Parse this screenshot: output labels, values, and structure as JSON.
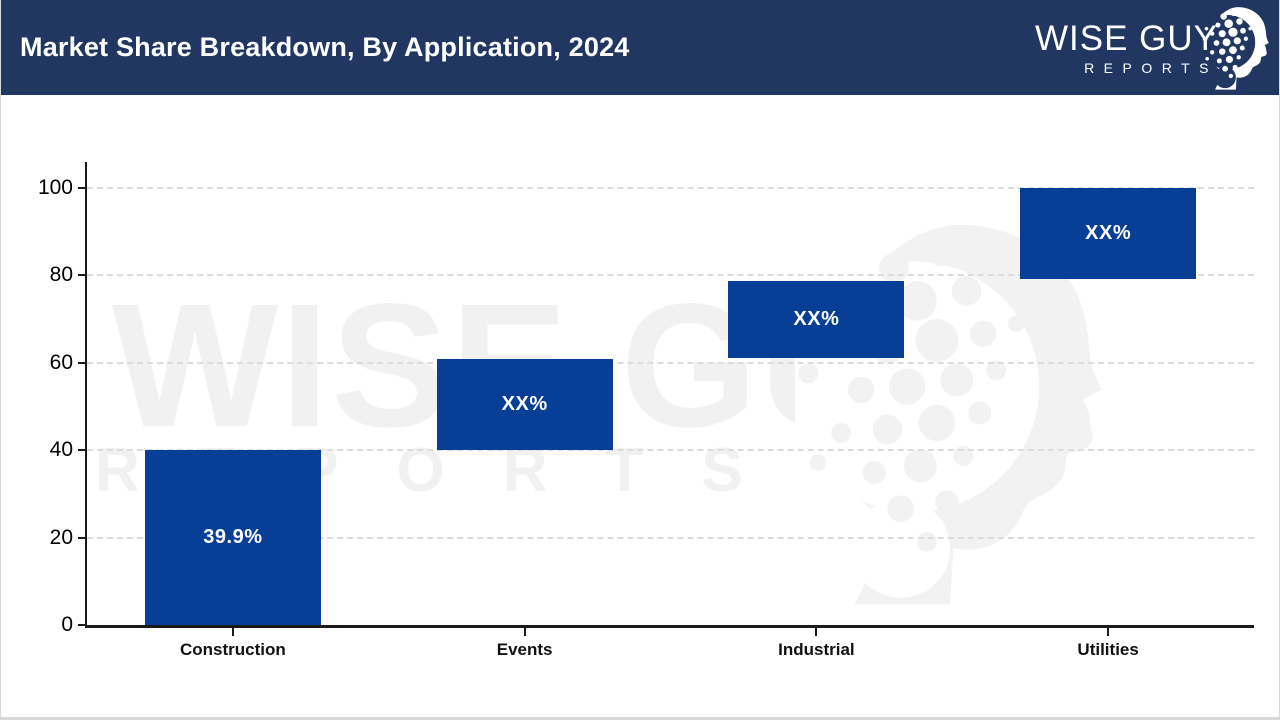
{
  "header": {
    "title": "Market Share Breakdown, By Application, 2024",
    "logo": {
      "line1": "WISE GUY",
      "line2": "REPORTS"
    }
  },
  "watermark": {
    "line1": "WISE GUY",
    "line2": "REPORTS"
  },
  "theme": {
    "header_bg": "#213660",
    "bar_color": "#083f96",
    "grid_color": "#dcdcdc",
    "axis_color": "#1a1a1a"
  },
  "chart_data": {
    "type": "bar",
    "subtype": "waterfall",
    "title": "Market Share Breakdown, By Application, 2024",
    "categories": [
      "Construction",
      "Events",
      "Industrial",
      "Utilities"
    ],
    "segments": [
      {
        "category": "Construction",
        "start": 0,
        "end": 39.9,
        "label": "39.9%"
      },
      {
        "category": "Events",
        "start": 39.9,
        "end": 60.8,
        "label": "XX%"
      },
      {
        "category": "Industrial",
        "start": 61.0,
        "end": 78.7,
        "label": "XX%"
      },
      {
        "category": "Utilities",
        "start": 79.0,
        "end": 100,
        "label": "XX%"
      }
    ],
    "yticks": [
      0,
      20,
      40,
      60,
      80,
      100
    ],
    "ylim": [
      0,
      106
    ],
    "xlabel": "",
    "ylabel": "",
    "grid": "dashed-horizontal",
    "legend": "none",
    "bar_value_label_color": "#ffffff"
  }
}
